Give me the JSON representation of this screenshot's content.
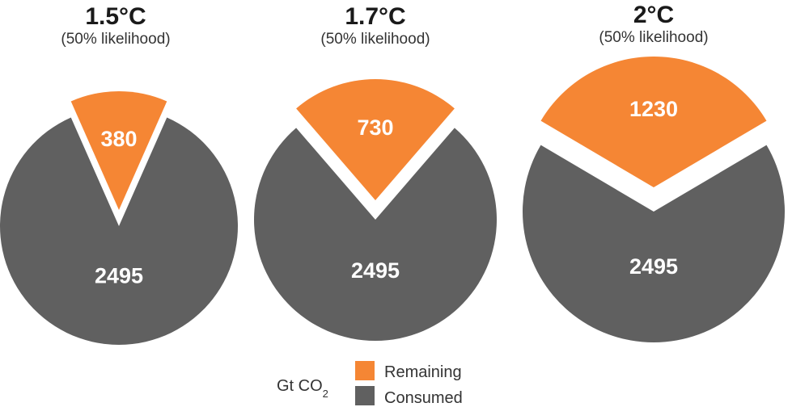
{
  "chart_data": [
    {
      "type": "pie",
      "title": "1.5°C",
      "subtitle": "(50% likelihood)",
      "slices": [
        {
          "name": "Remaining",
          "value": 380
        },
        {
          "name": "Consumed",
          "value": 2495
        }
      ]
    },
    {
      "type": "pie",
      "title": "1.7°C",
      "subtitle": "(50% likelihood)",
      "slices": [
        {
          "name": "Remaining",
          "value": 730
        },
        {
          "name": "Consumed",
          "value": 2495
        }
      ]
    },
    {
      "type": "pie",
      "title": "2°C",
      "subtitle": "(50% likelihood)",
      "slices": [
        {
          "name": "Remaining",
          "value": 1230
        },
        {
          "name": "Consumed",
          "value": 2495
        }
      ]
    }
  ],
  "legend": {
    "unit_main": "Gt CO",
    "unit_sub": "2",
    "items": [
      {
        "label": "Remaining",
        "color": "#f58634"
      },
      {
        "label": "Consumed",
        "color": "#606060"
      }
    ]
  },
  "colors": {
    "remaining": "#f58634",
    "consumed": "#606060"
  }
}
